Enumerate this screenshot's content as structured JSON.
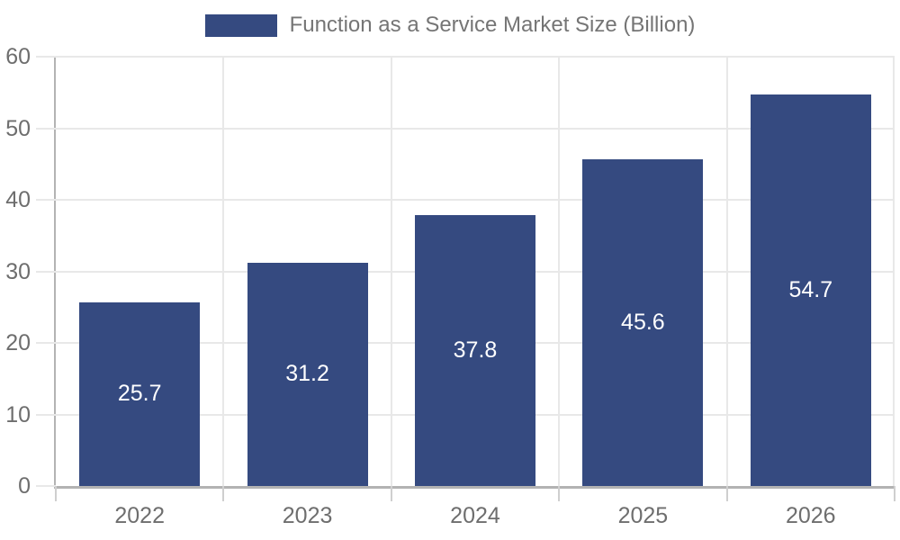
{
  "legend": {
    "label": "Function as a Service Market Size (Billion)"
  },
  "chart_data": {
    "type": "bar",
    "title": "Function as a Service Market Size (Billion)",
    "categories": [
      "2022",
      "2023",
      "2024",
      "2025",
      "2026"
    ],
    "values": [
      25.7,
      31.2,
      37.8,
      45.6,
      54.7
    ],
    "xlabel": "",
    "ylabel": "",
    "ylim": [
      0,
      60
    ],
    "yticks": [
      0,
      10,
      20,
      30,
      40,
      50,
      60
    ],
    "grid": true,
    "legend_position": "top-center",
    "value_labels": "inside-center",
    "colors": {
      "bar": "#354A80",
      "value_label": "#FFFFFF",
      "axis_text": "#6E6E6E",
      "legend_text": "#757575",
      "grid_line": "#E8E8E8",
      "axis_line": "#B3B3B3",
      "background": "#FFFFFF"
    }
  }
}
